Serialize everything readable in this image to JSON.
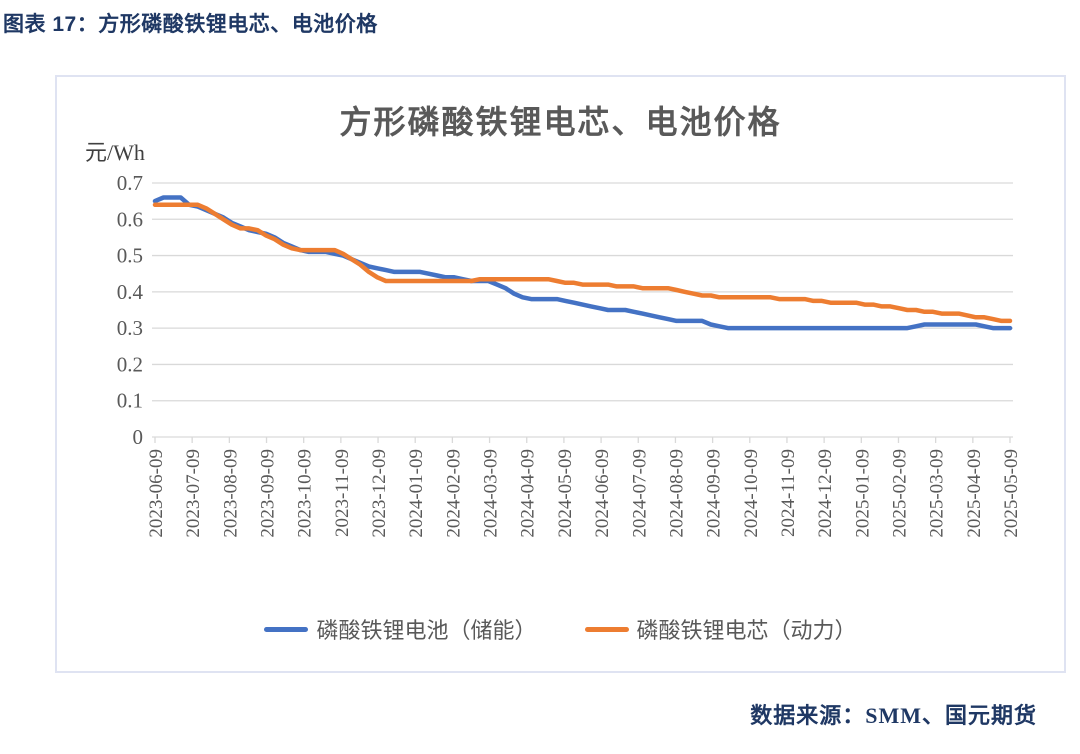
{
  "page": {
    "caption": "图表 17：方形磷酸铁锂电芯、电池价格",
    "source": "数据来源：SMM、国元期货"
  },
  "colors": {
    "caption_text": "#1f3864",
    "source_text": "#1f3864",
    "chart_title_text": "#595959",
    "axis_text": "#595959",
    "gridline": "#d9d9d9",
    "card_border": "#dfe3f2",
    "series_storage_battery": "#4472c4",
    "series_power_cell": "#ed7d31"
  },
  "chart_data": {
    "type": "line",
    "title": "方形磷酸铁锂电芯、电池价格",
    "unit_label": "元/Wh",
    "xlabel": "",
    "ylabel": "元/Wh",
    "ylim": [
      0,
      0.7
    ],
    "y_ticks": [
      "0",
      "0.1",
      "0.2",
      "0.3",
      "0.4",
      "0.5",
      "0.6",
      "0.7"
    ],
    "grid": true,
    "legend_position": "bottom",
    "x_tick_labels": [
      "2023-06-09",
      "2023-07-09",
      "2023-08-09",
      "2023-09-09",
      "2023-10-09",
      "2023-11-09",
      "2023-12-09",
      "2024-01-09",
      "2024-02-09",
      "2024-03-09",
      "2024-04-09",
      "2024-05-09",
      "2024-06-09",
      "2024-07-09",
      "2024-08-09",
      "2024-09-09",
      "2024-10-09",
      "2024-11-09",
      "2024-12-09",
      "2025-01-09",
      "2025-02-09",
      "2025-03-09",
      "2025-04-09",
      "2025-05-09"
    ],
    "x_note": "weekly data points, 101 values evenly spanning 2023-06-09 to 2025-05-09 (unit: 元/Wh)",
    "series": [
      {
        "name": "磷酸铁锂电池（储能）",
        "color": "#4472c4",
        "values": [
          0.65,
          0.66,
          0.66,
          0.66,
          0.64,
          0.635,
          0.625,
          0.615,
          0.605,
          0.59,
          0.58,
          0.57,
          0.565,
          0.56,
          0.55,
          0.535,
          0.525,
          0.515,
          0.51,
          0.51,
          0.51,
          0.505,
          0.5,
          0.49,
          0.48,
          0.47,
          0.465,
          0.46,
          0.455,
          0.455,
          0.455,
          0.455,
          0.45,
          0.445,
          0.44,
          0.44,
          0.435,
          0.43,
          0.43,
          0.43,
          0.42,
          0.41,
          0.395,
          0.385,
          0.38,
          0.38,
          0.38,
          0.38,
          0.375,
          0.37,
          0.365,
          0.36,
          0.355,
          0.35,
          0.35,
          0.35,
          0.345,
          0.34,
          0.335,
          0.33,
          0.325,
          0.32,
          0.32,
          0.32,
          0.32,
          0.31,
          0.305,
          0.3,
          0.3,
          0.3,
          0.3,
          0.3,
          0.3,
          0.3,
          0.3,
          0.3,
          0.3,
          0.3,
          0.3,
          0.3,
          0.3,
          0.3,
          0.3,
          0.3,
          0.3,
          0.3,
          0.3,
          0.3,
          0.3,
          0.305,
          0.31,
          0.31,
          0.31,
          0.31,
          0.31,
          0.31,
          0.31,
          0.305,
          0.3,
          0.3,
          0.3
        ]
      },
      {
        "name": "磷酸铁锂电芯（动力）",
        "color": "#ed7d31",
        "values": [
          0.64,
          0.64,
          0.64,
          0.64,
          0.64,
          0.64,
          0.63,
          0.615,
          0.6,
          0.585,
          0.575,
          0.575,
          0.57,
          0.555,
          0.545,
          0.53,
          0.52,
          0.515,
          0.515,
          0.515,
          0.515,
          0.515,
          0.505,
          0.49,
          0.475,
          0.455,
          0.44,
          0.43,
          0.43,
          0.43,
          0.43,
          0.43,
          0.43,
          0.43,
          0.43,
          0.43,
          0.43,
          0.43,
          0.435,
          0.435,
          0.435,
          0.435,
          0.435,
          0.435,
          0.435,
          0.435,
          0.435,
          0.43,
          0.425,
          0.425,
          0.42,
          0.42,
          0.42,
          0.42,
          0.415,
          0.415,
          0.415,
          0.41,
          0.41,
          0.41,
          0.41,
          0.405,
          0.4,
          0.395,
          0.39,
          0.39,
          0.385,
          0.385,
          0.385,
          0.385,
          0.385,
          0.385,
          0.385,
          0.38,
          0.38,
          0.38,
          0.38,
          0.375,
          0.375,
          0.37,
          0.37,
          0.37,
          0.37,
          0.365,
          0.365,
          0.36,
          0.36,
          0.355,
          0.35,
          0.35,
          0.345,
          0.345,
          0.34,
          0.34,
          0.34,
          0.335,
          0.33,
          0.33,
          0.325,
          0.32,
          0.32
        ]
      }
    ]
  }
}
